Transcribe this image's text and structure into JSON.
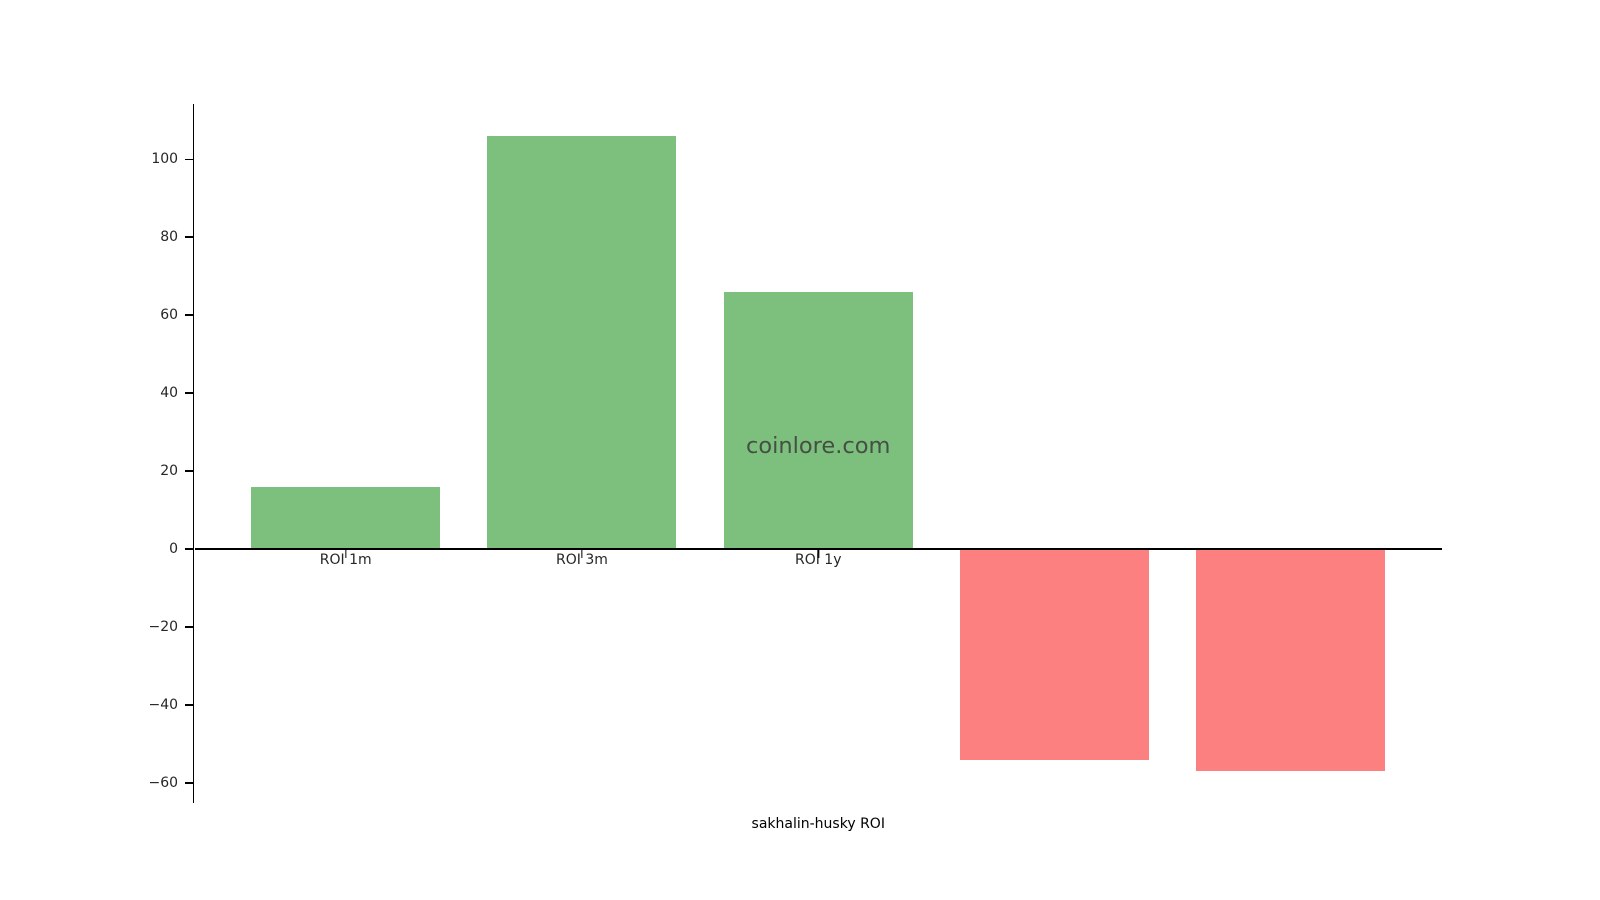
{
  "chart_data": {
    "type": "bar",
    "title": "sakhalin-husky ROI",
    "watermark": "coinlore.com",
    "categories": [
      "ROI 1m",
      "ROI 3m",
      "ROI 1y",
      "",
      ""
    ],
    "visible_x_labels": [
      "ROI 1m",
      "ROI 3m",
      "ROI 1y"
    ],
    "values": [
      16,
      106,
      66,
      -54,
      -57
    ],
    "bar_colors": [
      "#7dbf7d",
      "#7dbf7d",
      "#7dbf7d",
      "#fc8080",
      "#fc8080"
    ],
    "positive_color": "#7dbf7d",
    "negative_color": "#fc8080",
    "y_ticks": [
      100,
      80,
      60,
      40,
      20,
      0,
      -20,
      -40,
      -60
    ],
    "ylim": [
      -65.15,
      114.15
    ],
    "xlabel": "",
    "ylabel": "",
    "grid": false,
    "legend_position": "none",
    "axis_color": "#000000",
    "tick_label_color": "#262626",
    "watermark_color": "#3c3c3c",
    "background_color": "#ffffff"
  }
}
